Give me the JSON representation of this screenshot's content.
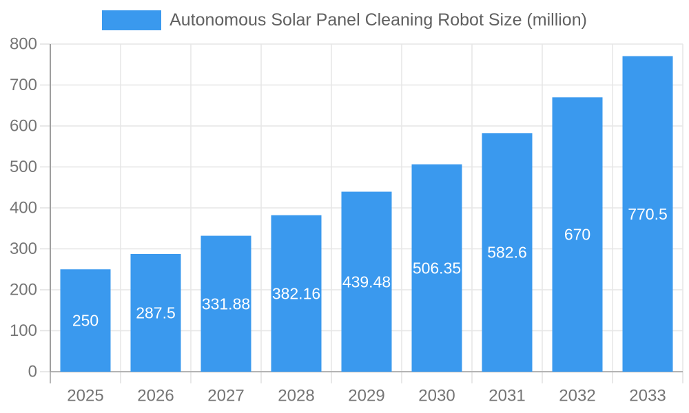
{
  "chart_data": {
    "type": "bar",
    "title": "Autonomous Solar Panel Cleaning Robot Size (million)",
    "categories": [
      "2025",
      "2026",
      "2027",
      "2028",
      "2029",
      "2030",
      "2031",
      "2032",
      "2033"
    ],
    "values": [
      250,
      287.5,
      331.88,
      382.16,
      439.48,
      506.35,
      582.6,
      670,
      770.5
    ],
    "value_labels": [
      "250",
      "287.5",
      "331.88",
      "382.16",
      "439.48",
      "506.35",
      "582.6",
      "670",
      "770.5"
    ],
    "xlabel": "",
    "ylabel": "",
    "ylim": [
      0,
      800
    ],
    "y_ticks": [
      0,
      100,
      200,
      300,
      400,
      500,
      600,
      700,
      800
    ],
    "grid": true,
    "legend_position": "top-center",
    "colors": {
      "bar": "#3A99EE",
      "bar_value_label": "#FFFFFF",
      "axis_text": "#757575",
      "legend_text": "#616161",
      "gridline": "#E6E6E6",
      "tick": "#E0E0E0",
      "y_axis_line": "#9E9E9E",
      "x_axis_line": "#B3B3B3",
      "background": "#FFFFFF"
    }
  }
}
